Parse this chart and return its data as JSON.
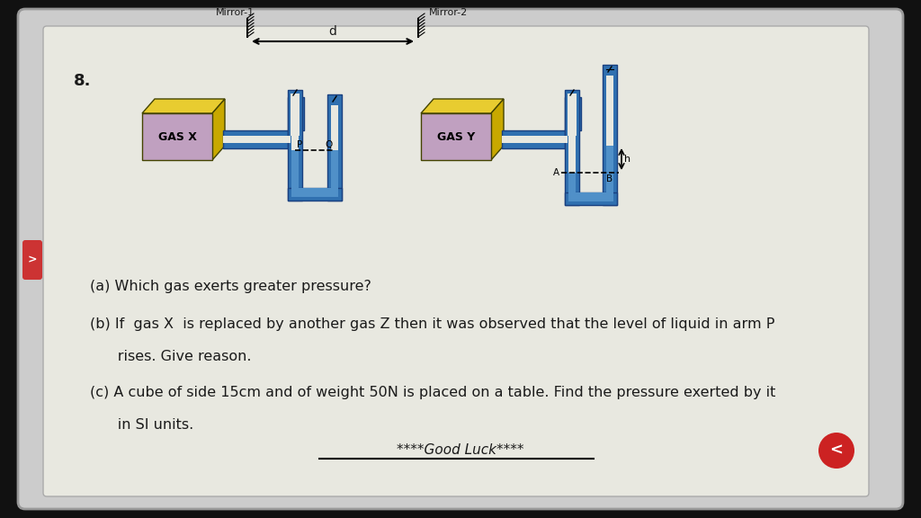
{
  "bg_outer": "#111111",
  "bg_tablet": "#cccccc",
  "bg_page": "#e8e8e0",
  "text_color": "#1a1a1a",
  "question_number": "8.",
  "part_a": "(a) Which gas exerts greater pressure?",
  "part_b": "(b) If  gas X  is replaced by another gas Z then it was observed that the level of liquid in arm P",
  "part_b2": "      rises. Give reason.",
  "part_c": "(c) A cube of side 15cm and of weight 50N is placed on a table. Find the pressure exerted by it",
  "part_c2": "      in SI units.",
  "footer": "****Good Luck****",
  "mirror1_label": "Mirror-1",
  "mirror2_label": "Mirror-2",
  "d_label": "d",
  "gas_x_label": "GAS X",
  "gas_y_label": "GAS Y",
  "p_label": "P",
  "q_label": "Q",
  "a_label": "A",
  "b_label": "B",
  "h_label": "h",
  "box_yellow": "#c8a800",
  "box_yellow_top": "#e8cc30",
  "box_face": "#c0a0c0",
  "tube_color": "#3070b0",
  "tube_inner": "#5090cc",
  "liquid_blue": "#5090c8",
  "page_line": "#888888",
  "share_red": "#cc2222",
  "left_tab_red": "#cc3333"
}
